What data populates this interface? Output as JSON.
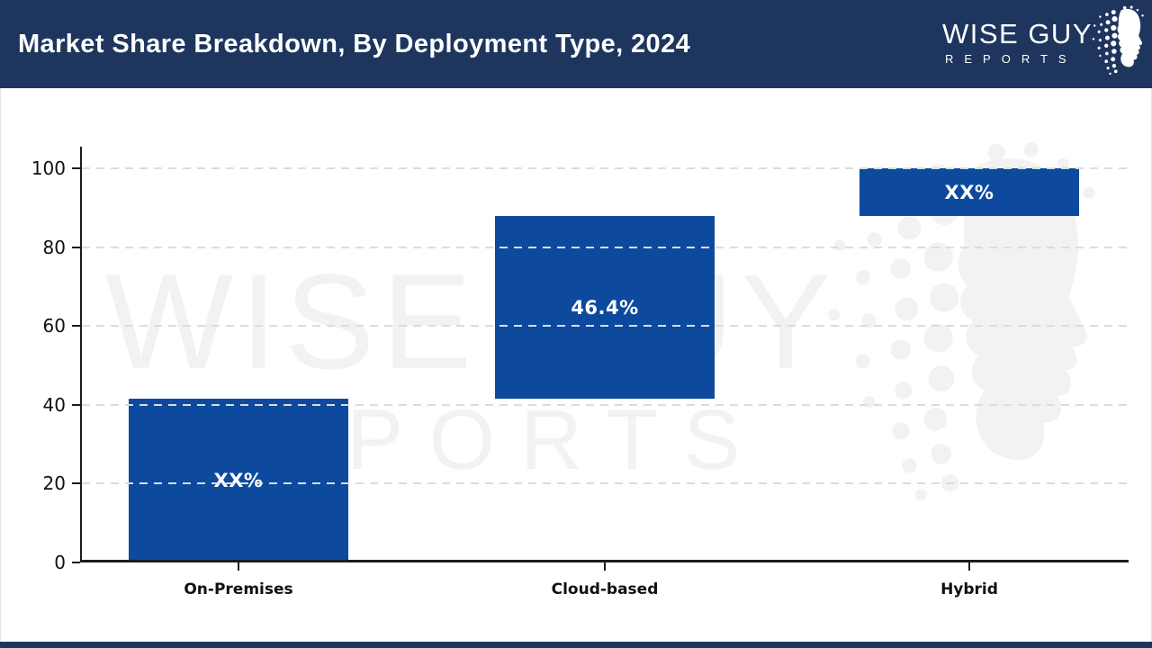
{
  "header": {
    "title": "Market Share Breakdown, By Deployment Type, 2024",
    "background": "#1e355e",
    "logo": {
      "wordmark": "WISE GUY",
      "sub": "REPORTS"
    }
  },
  "watermark": {
    "wordmark": "WISE GUY",
    "sub": "REPORTS"
  },
  "footer": {
    "bar_color": "#1e355e"
  },
  "chart_data": {
    "type": "bar",
    "subtype": "stacked-cumulative-segments",
    "title": "Market Share Breakdown, By Deployment Type, 2024",
    "categories": [
      "On-Premises",
      "Cloud-based",
      "Hybrid"
    ],
    "bars": [
      {
        "category": "On-Premises",
        "start": 0,
        "end": 41.5,
        "label": "XX%"
      },
      {
        "category": "Cloud-based",
        "start": 41.5,
        "end": 87.9,
        "label": "46.4%"
      },
      {
        "category": "Hybrid",
        "start": 87.9,
        "end": 100,
        "label": "XX%"
      }
    ],
    "ylim": [
      0,
      100
    ],
    "yticks": [
      0,
      20,
      40,
      60,
      80,
      100
    ],
    "xlabel": "",
    "ylabel": "",
    "grid": "horizontal-dashed",
    "legend": "none",
    "bar_color": "#0d4a9e",
    "bar_label_color": "#ffffff",
    "gridline_color": "#dcdcdc",
    "axis_color": "#1c1c1c"
  }
}
